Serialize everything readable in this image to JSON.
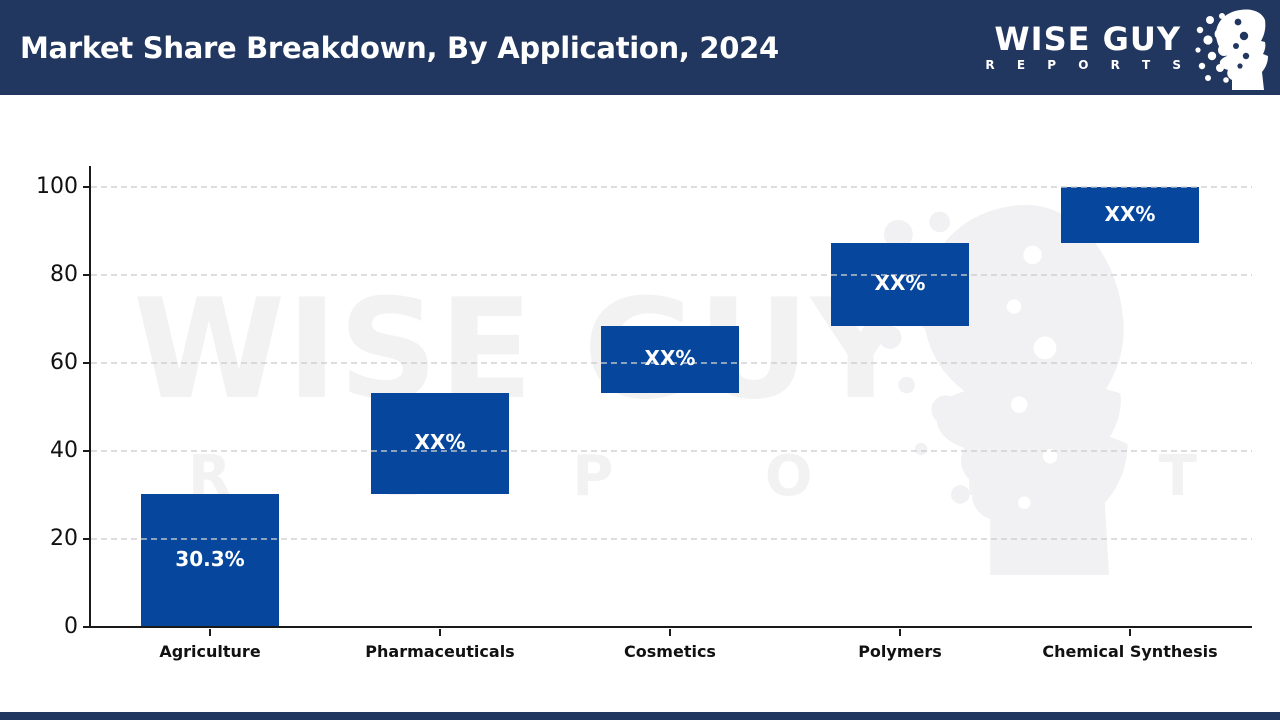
{
  "header": {
    "title": "Market Share Breakdown, By Application, 2024",
    "logo_line1": "WISE GUY",
    "logo_line2": "R E P O R T S",
    "bg_color": "#21375f"
  },
  "watermark": {
    "line1": "WISE GUY",
    "line2": "R E P O R T S"
  },
  "chart_data": {
    "type": "bar",
    "subtype": "waterfall",
    "title": "Market Share Breakdown, By Application, 2024",
    "categories": [
      "Agriculture",
      "Pharmaceuticals",
      "Cosmetics",
      "Polymers",
      "Chemical Synthesis"
    ],
    "segments": [
      {
        "category": "Agriculture",
        "start": 0,
        "end": 30.3,
        "label": "30.3%"
      },
      {
        "category": "Pharmaceuticals",
        "start": 30.3,
        "end": 53.2,
        "label": "XX%"
      },
      {
        "category": "Cosmetics",
        "start": 53.2,
        "end": 68.4,
        "label": "XX%"
      },
      {
        "category": "Polymers",
        "start": 68.4,
        "end": 87.3,
        "label": "XX%"
      },
      {
        "category": "Chemical Synthesis",
        "start": 87.3,
        "end": 100,
        "label": "XX%"
      }
    ],
    "xlabel": "",
    "ylabel": "",
    "ylim": [
      0,
      100
    ],
    "yticks": [
      0,
      20,
      40,
      60,
      80,
      100
    ],
    "grid": "horizontal-dashed",
    "legend": "none",
    "bar_color": "#06479d",
    "bar_label_color": "#ffffff"
  }
}
